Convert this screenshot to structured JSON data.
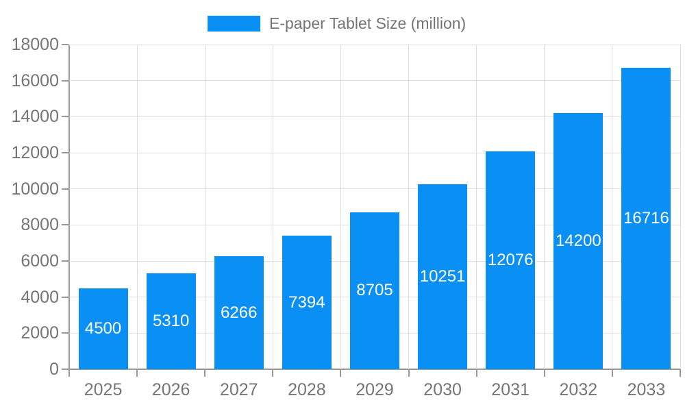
{
  "legend": {
    "label": "E-paper Tablet Size (million)"
  },
  "colors": {
    "bar": "#0a8ff5",
    "axis_line": "#999999",
    "grid_h": "#e2e2e2",
    "grid_v": "#dcdcdc",
    "tick_label": "#757575",
    "value_label": "#ffffff",
    "background": "#ffffff"
  },
  "chart_data": {
    "type": "bar",
    "title": "E-paper Tablet Size (million)",
    "categories": [
      "2025",
      "2026",
      "2027",
      "2028",
      "2029",
      "2030",
      "2031",
      "2032",
      "2033"
    ],
    "values": [
      4500,
      5310,
      6266,
      7394,
      8705,
      10251,
      12076,
      14200,
      16716
    ],
    "series": [
      {
        "name": "E-paper Tablet Size (million)",
        "values": [
          4500,
          5310,
          6266,
          7394,
          8705,
          10251,
          12076,
          14200,
          16716
        ]
      }
    ],
    "xlabel": "",
    "ylabel": "",
    "ylim": [
      0,
      18000
    ],
    "yticks": [
      0,
      2000,
      4000,
      6000,
      8000,
      10000,
      12000,
      14000,
      16000,
      18000
    ],
    "grid": true,
    "legend_position": "top-center",
    "value_label_position": "inside-center"
  }
}
